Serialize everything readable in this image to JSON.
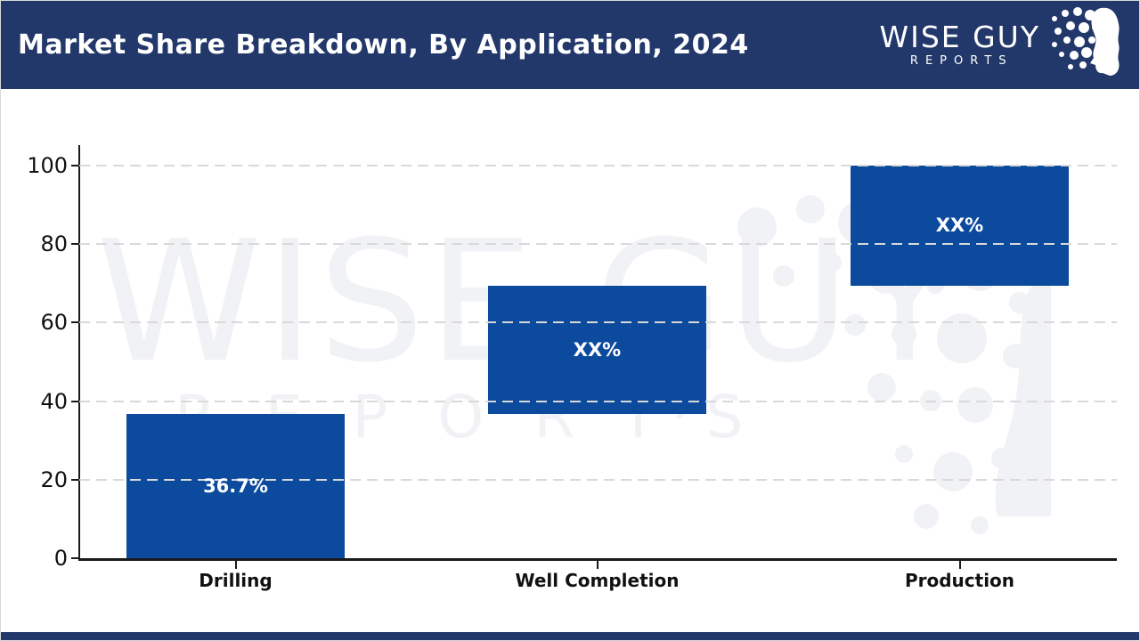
{
  "header": {
    "title": "Market Share Breakdown, By Application, 2024",
    "bg_color": "#23386a",
    "logo": {
      "line1": "WISE GUY",
      "line2": "REPORTS"
    }
  },
  "watermark": {
    "line1": "WISE GUY",
    "line2": "REPORTS"
  },
  "chart_data": {
    "type": "bar",
    "variant": "floating-waterfall",
    "title": "Market Share Breakdown, By Application, 2024",
    "categories": [
      "Drilling",
      "Well Completion",
      "Production"
    ],
    "segments": [
      {
        "category": "Drilling",
        "start": 0,
        "end": 36.7,
        "label": "36.7%"
      },
      {
        "category": "Well Completion",
        "start": 36.7,
        "end": 69.5,
        "label": "XX%"
      },
      {
        "category": "Production",
        "start": 69.5,
        "end": 100,
        "label": "XX%"
      }
    ],
    "ylim": [
      0,
      100
    ],
    "yticks": [
      0,
      20,
      40,
      60,
      80,
      100
    ],
    "grid": "horizontal-dashed",
    "legend": "none",
    "bar_color": "#0c4a9e",
    "value_label_color": "#ffffff"
  }
}
